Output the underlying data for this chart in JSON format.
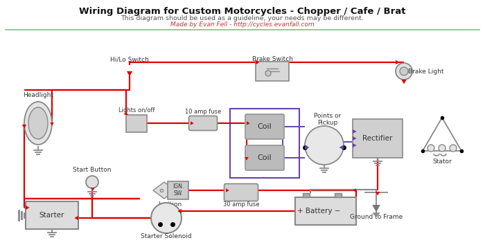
{
  "title": "Wiring Diagram for Custom Motorcycles - Chopper / Cafe / Brat",
  "subtitle": "This diagram should be used as a guideline, your needs may be different.",
  "credit": "Made by Evan Fell - http://cycles.evanfall.com",
  "bg_color": "#ffffff",
  "title_color": "#111111",
  "subtitle_color": "#555555",
  "credit_color": "#cc3333",
  "divider_color": "#88bb88",
  "RED": "#dd0000",
  "PURPLE": "#6644aa",
  "GRAY": "#888888",
  "CFILL": "#cccccc",
  "CFILL2": "#bbbbbb",
  "CEDGE": "#888888",
  "DFILL": "#dddddd"
}
